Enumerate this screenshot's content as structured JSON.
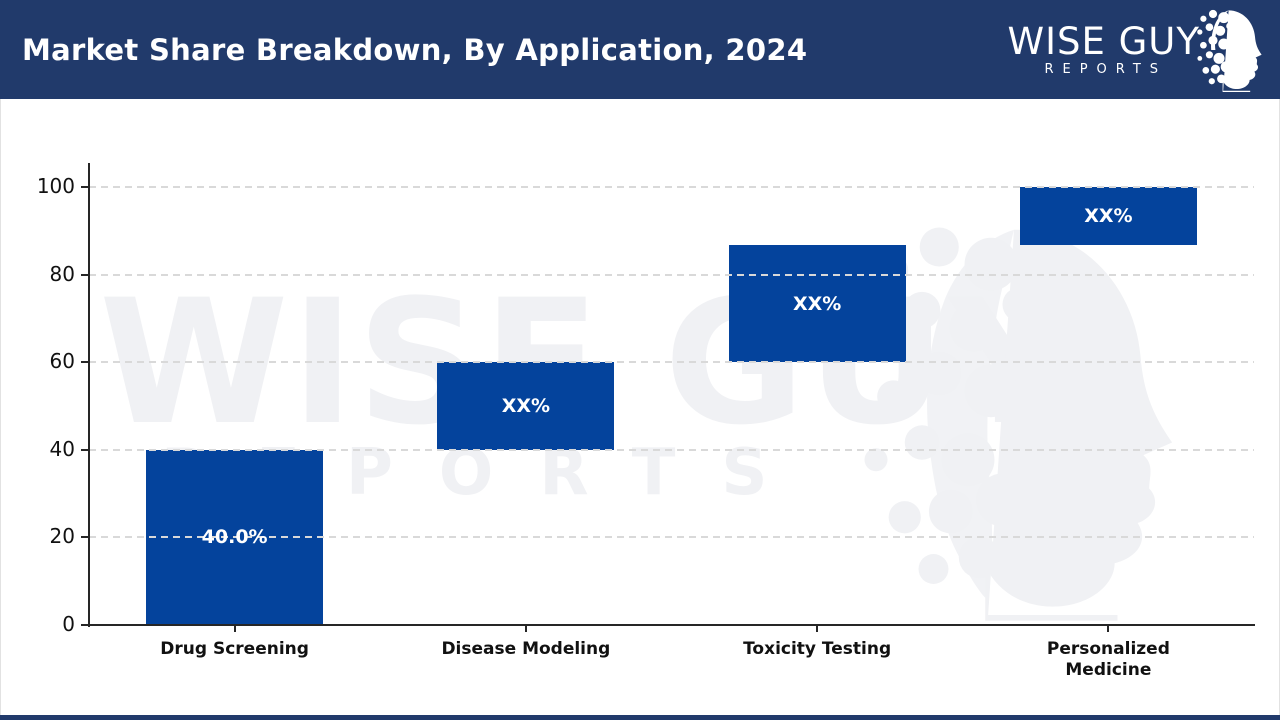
{
  "header": {
    "title": "Market Share Breakdown, By Application, 2024",
    "logo": {
      "line1": "WISE GUY",
      "line2": "REPORTS"
    }
  },
  "watermark": {
    "line1": "WISE GUY",
    "line2": "REPORTS"
  },
  "chart_data": {
    "type": "bar",
    "subtype": "waterfall",
    "title": "Market Share Breakdown, By Application, 2024",
    "categories": [
      "Drug Screening",
      "Disease Modeling",
      "Toxicity Testing",
      "Personalized\nMedicine"
    ],
    "segments": [
      {
        "category": "Drug Screening",
        "start": 0,
        "end": 40,
        "label": "40.0%"
      },
      {
        "category": "Disease Modeling",
        "start": 40,
        "end": 60,
        "label": "XX%"
      },
      {
        "category": "Toxicity Testing",
        "start": 60,
        "end": 86.7,
        "label": "XX%"
      },
      {
        "category": "Personalized Medicine",
        "start": 86.7,
        "end": 100,
        "label": "XX%"
      }
    ],
    "yticks": [
      0,
      20,
      40,
      60,
      80,
      100
    ],
    "ylim": [
      0,
      100
    ],
    "grid": {
      "axis": "y",
      "style": "dashed",
      "color": "#d9d9d9"
    },
    "legend": null,
    "bar_color": "#04439c",
    "bar_label_color": "#ffffff"
  },
  "colors": {
    "header_bg": "#213a6b",
    "bar": "#04439c",
    "axis": "#262626",
    "grid": "#d9d9d9",
    "watermark": "#f0f1f4",
    "title_text": "#ffffff"
  }
}
